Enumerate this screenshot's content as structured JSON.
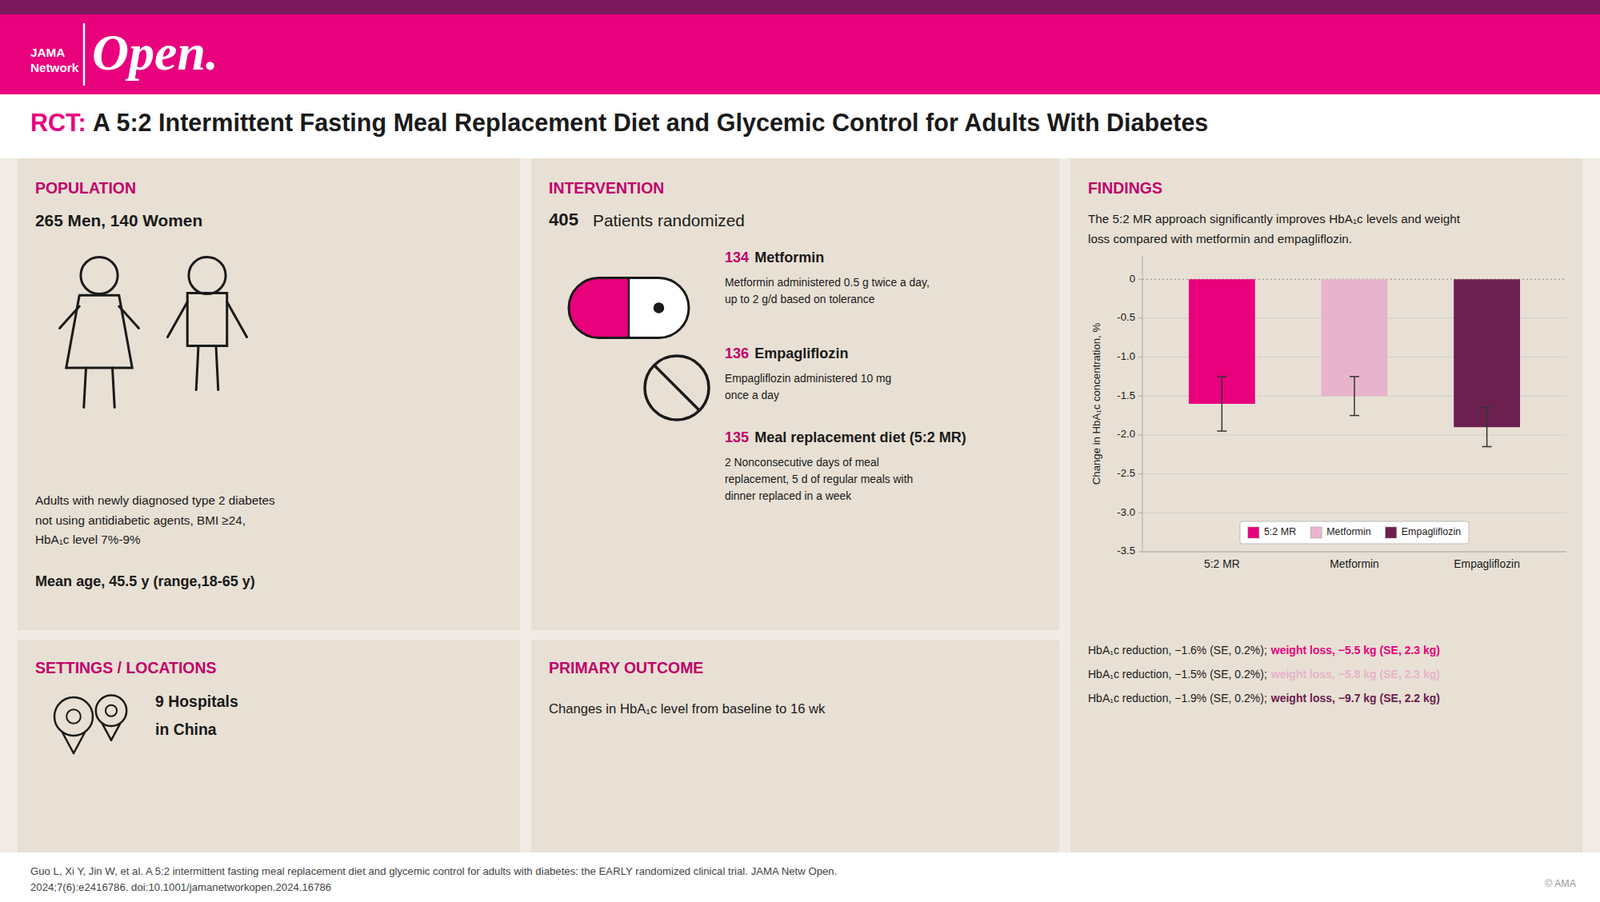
{
  "chart_data": {
    "type": "bar",
    "title": "A 5:2 Intermittent Fasting Meal Replacement Diet and Glycemic Control for Adults With Diabetes",
    "categories": [
      "5:2 MR",
      "Metformin",
      "Empagliflozin"
    ],
    "values": [
      -1.6,
      -1.5,
      -1.9
    ],
    "errors": [
      0.35,
      0.25,
      0.25
    ],
    "colors": [
      "#e8007d",
      "#e8b4cc",
      "#6b2050"
    ],
    "y_label": "Change in HbA₁ᴄ concentration, %",
    "ylim": [
      -3.5,
      0.3
    ],
    "yticks": [
      0,
      -0.5,
      {
        "value": -1.0,
        "label": "-1.0"
      },
      -1.5,
      {
        "value": -2.0,
        "label": "-2.0"
      },
      -2.5,
      {
        "value": -3.0,
        "label": "-3.0"
      },
      -3.5
    ],
    "grid": true,
    "legend": "lower center",
    "annotations": [
      "JAMA",
      "Network",
      "Open.",
      "RCT:",
      "POPULATION",
      "265 Men, 140 Women",
      "Adults with newly diagnosed type 2 diabetes",
      "not using antidiabetic agents, BMI ≥24,",
      "HbA₁ᴄ level 7%-9%",
      "Mean age, 45.5 y (range,18-65 y)",
      "SETTINGS / LOCATIONS",
      "9 Hospitals",
      "in China",
      "INTERVENTION",
      "405",
      "Patients randomized",
      "134",
      "Metformin",
      "Metformin administered 0.5 g twice a day,",
      "up to 2 g/d based on tolerance",
      "136",
      "Empagliflozin",
      "Empagliflozin administered 10 mg",
      "once a day",
      "135",
      "Meal replacement diet (5:2 MR)",
      "2 Nonconsecutive days of meal",
      "replacement, 5 d of regular meals with",
      "dinner replaced in a week",
      "PRIMARY OUTCOME",
      "Changes in HbA₁ᴄ level from baseline to 16 wk",
      "FINDINGS",
      "The 5:2 MR approach significantly improves HbA₁ᴄ levels and weight",
      "loss compared with metformin and empagliflozin.",
      "HbA₁ᴄ reduction, −1.6% (SE, 0.2%);",
      "weight loss, −5.5 kg (SE, 2.3 kg)",
      "HbA₁ᴄ reduction, −1.5% (SE, 0.2%);",
      "weight loss, −5.8 kg (SE, 2.3 kg)",
      "HbA₁ᴄ reduction, −1.9% (SE, 0.2%);",
      "weight loss, −9.7 kg (SE, 2.2 kg)",
      "Guo L, Xi Y, Jin W, et al. A 5:2 intermittent fasting meal replacement diet and glycemic control for adults with diabetes: the EARLY randomized clinical trial. JAMA Netw Open.",
      "2024;7(6):e2416786. doi:10.1001/jamanetworkopen.2024.16786",
      "© AMA"
    ]
  }
}
